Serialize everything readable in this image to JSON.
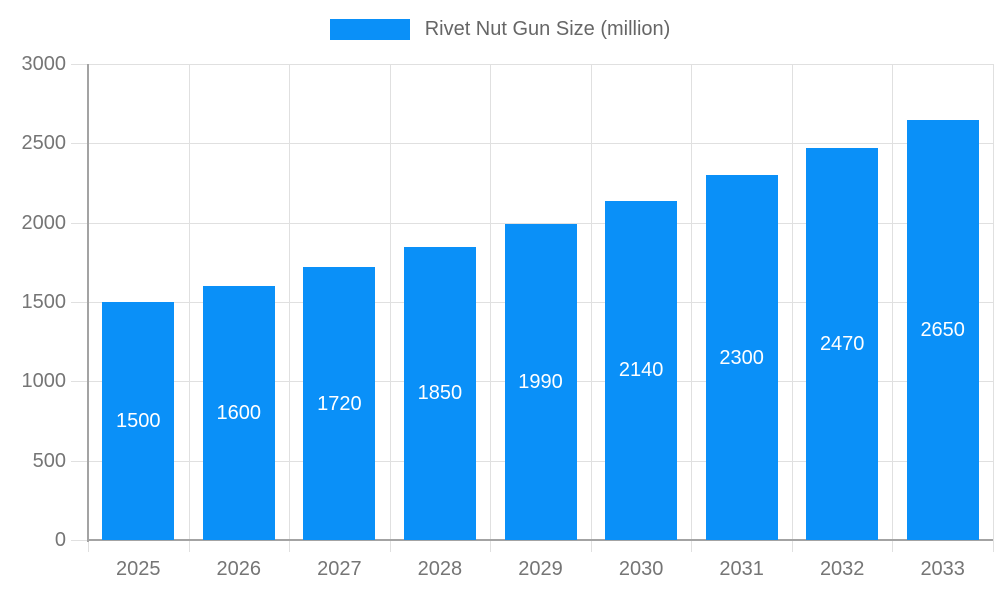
{
  "legend": {
    "label": "Rivet Nut Gun Size (million)"
  },
  "chart_data": {
    "type": "bar",
    "title": "",
    "categories": [
      "2025",
      "2026",
      "2027",
      "2028",
      "2029",
      "2030",
      "2031",
      "2032",
      "2033"
    ],
    "series": [
      {
        "name": "Rivet Nut Gun Size (million)",
        "values": [
          1500,
          1600,
          1720,
          1850,
          1990,
          2140,
          2300,
          2470,
          2650
        ]
      }
    ],
    "bar_labels": [
      1500,
      1600,
      1720,
      1850,
      1990,
      2140,
      2300,
      2470,
      2650
    ],
    "xlabel": "",
    "ylabel": "",
    "ylim": [
      0,
      3000
    ],
    "yticks": [
      0,
      500,
      1000,
      1500,
      2000,
      2500,
      3000
    ],
    "grid": true,
    "legend_position": "top-center",
    "bar_label_position": "inside-center"
  },
  "colors": {
    "bar": "#0a90f8",
    "grid": "#e0e0e0",
    "axis": "#a3a3a3",
    "axis_label": "#757575",
    "legend_text": "#666666",
    "bar_label": "#ffffff",
    "background": "#ffffff"
  }
}
